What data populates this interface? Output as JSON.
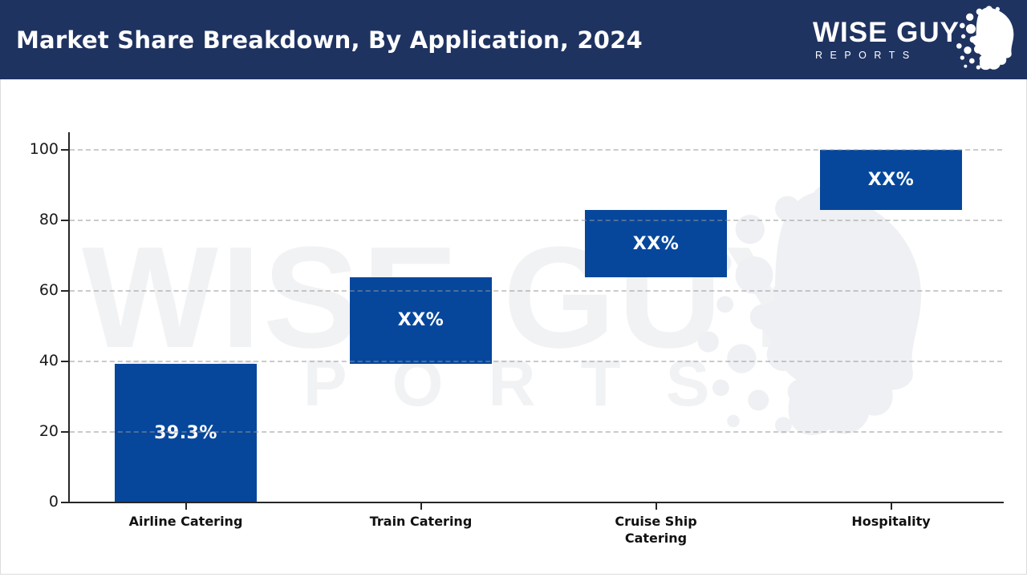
{
  "header": {
    "title": "Market Share Breakdown, By Application, 2024",
    "bg_color": "#1f3361",
    "logo": {
      "line1": "WISE GUY",
      "line2": "REPORTS"
    }
  },
  "watermark": {
    "line1": "WISE GUY",
    "line2": "REPORTS"
  },
  "chart_data": {
    "type": "bar",
    "subtype": "waterfall",
    "title": "Market Share Breakdown, By Application, 2024",
    "categories": [
      "Airline Catering",
      "Train Catering",
      "Cruise Ship Catering",
      "Hospitality"
    ],
    "segments": [
      {
        "category": "Airline Catering",
        "start": 0,
        "end": 39.3,
        "label": "39.3%"
      },
      {
        "category": "Train Catering",
        "start": 39.3,
        "end": 63.9,
        "label": "XX%"
      },
      {
        "category": "Cruise Ship Catering",
        "start": 63.9,
        "end": 82.9,
        "label": "XX%"
      },
      {
        "category": "Hospitality",
        "start": 82.9,
        "end": 100,
        "label": "XX%"
      }
    ],
    "y_ticks": [
      0,
      20,
      40,
      60,
      80,
      100
    ],
    "ylim": [
      0,
      100
    ],
    "xlabel": "",
    "ylabel": "",
    "grid": "dashed horizontal",
    "legend": "none",
    "bar_color": "#06479c",
    "bar_label_color": "#ffffff"
  }
}
